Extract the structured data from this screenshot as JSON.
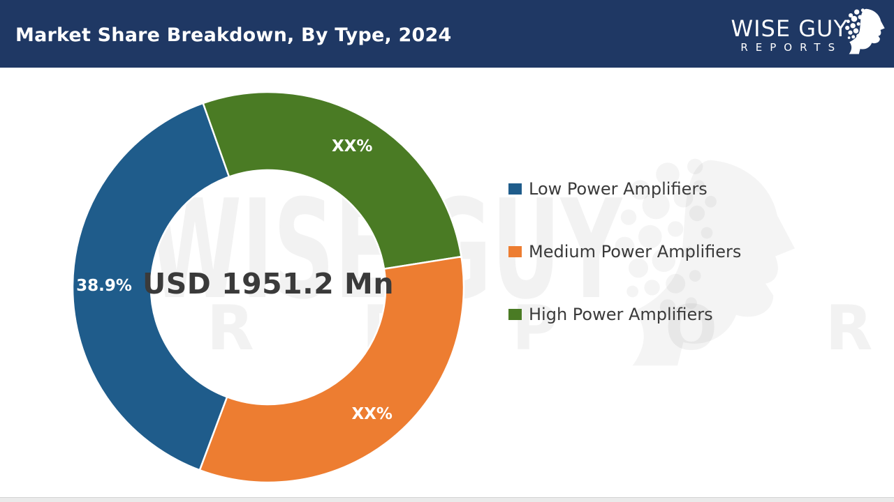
{
  "header": {
    "title": "Market Share Breakdown, By Type, 2024",
    "bg_color": "#1F3864",
    "logo": {
      "wordmark": "WISE GUY",
      "subtitle": "REPORTS"
    }
  },
  "watermark": {
    "line1": "WISE GUY",
    "line2": "R E P O R T S"
  },
  "chart_data": {
    "type": "pie",
    "subtype": "donut",
    "title": "Market Share Breakdown, By Type, 2024",
    "center_label": "USD 1951.2 Mn",
    "start_angle_deg": 200.5,
    "clockwise": true,
    "legend_position": "right",
    "label_colors": "#ffffff",
    "segments": [
      {
        "name": "Low Power Amplifiers",
        "label": "38.9%",
        "value_pct": 38.9,
        "color": "#1F5C8B"
      },
      {
        "name": "High Power Amplifiers",
        "label": "XX%",
        "value_pct": 27.9,
        "color": "#4A7B24"
      },
      {
        "name": "Medium Power Amplifiers",
        "label": "XX%",
        "value_pct": 33.2,
        "color": "#ED7D31"
      }
    ],
    "legend": [
      {
        "label": "Low Power Amplifiers",
        "color": "#1F5C8B"
      },
      {
        "label": "Medium Power Amplifiers",
        "color": "#ED7D31"
      },
      {
        "label": "High Power Amplifiers",
        "color": "#4A7B24"
      }
    ]
  }
}
